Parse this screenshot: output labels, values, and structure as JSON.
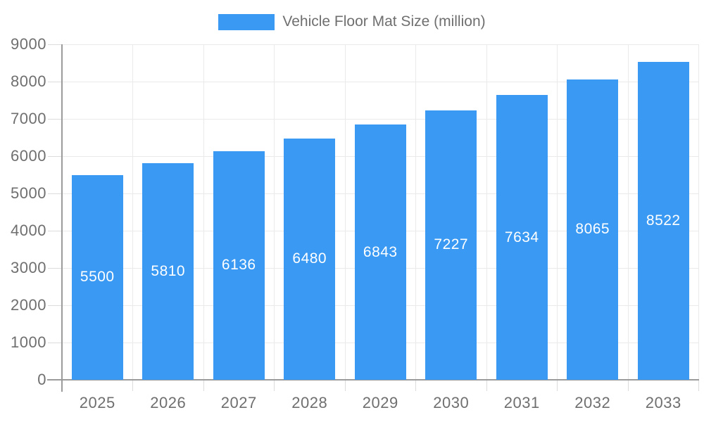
{
  "colors": {
    "bar": "#3A99F2",
    "grid": "#EAEAEA",
    "tick": "#DCDCDC",
    "axis": "#9B9B9B",
    "text": "#6F6F6F",
    "value_label": "#FFFFFF"
  },
  "chart_data": {
    "type": "bar",
    "title": "",
    "legend": "Vehicle Floor Mat Size (million)",
    "legend_position": "top-center",
    "categories": [
      "2025",
      "2026",
      "2027",
      "2028",
      "2029",
      "2030",
      "2031",
      "2032",
      "2033"
    ],
    "values": [
      5500,
      5810,
      6136,
      6480,
      6843,
      7227,
      7634,
      8065,
      8522
    ],
    "xlabel": "",
    "ylabel": "",
    "ylim": [
      0,
      9000
    ],
    "ytick_step": 1000,
    "yticks": [
      0,
      1000,
      2000,
      3000,
      4000,
      5000,
      6000,
      7000,
      8000,
      9000
    ],
    "grid": true,
    "bar_value_labels": "inside-center"
  }
}
